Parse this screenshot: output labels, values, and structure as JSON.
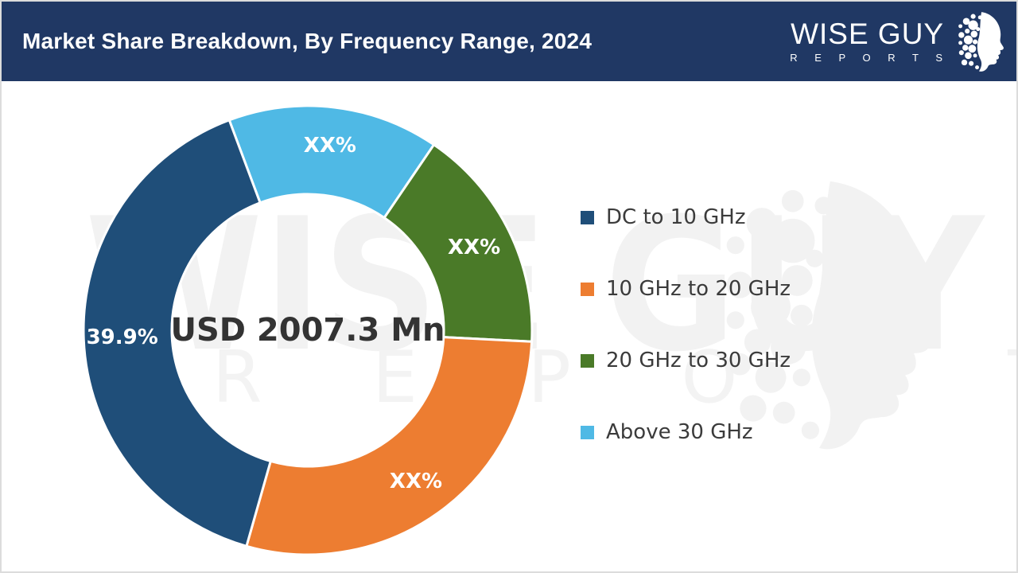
{
  "header": {
    "title": "Market Share Breakdown, By Frequency Range, 2024",
    "logo": {
      "name": "WISE GUY",
      "sub": "REPORTS"
    }
  },
  "watermark": {
    "brand": "WISE GUY",
    "sub": "REPORTS"
  },
  "chart_data": {
    "type": "pie",
    "variant": "donut",
    "title": "Market Share Breakdown, By Frequency Range, 2024",
    "center_label": "USD 2007.3 Mn",
    "legend_position": "right",
    "start_angle_deg": -20.5,
    "inner_radius_ratio": 0.605,
    "segments": [
      {
        "label": "DC to 10 GHz",
        "value_pct": 39.9,
        "display": "39.9%",
        "color": "#1f4e79"
      },
      {
        "label": "10 GHz to 20 GHz",
        "value_pct": 28.6,
        "display": "XX%",
        "color": "#ed7d31"
      },
      {
        "label": "20 GHz to 30 GHz",
        "value_pct": 16.3,
        "display": "XX%",
        "color": "#4a7a28"
      },
      {
        "label": "Above 30 GHz",
        "value_pct": 15.2,
        "display": "XX%",
        "color": "#4fb9e5"
      }
    ]
  },
  "colors": {
    "header_bg": "#203864",
    "title_text": "#ffffff",
    "center_text": "#333333",
    "legend_text": "#3b3b3b",
    "watermark": "#f2f2f2"
  }
}
